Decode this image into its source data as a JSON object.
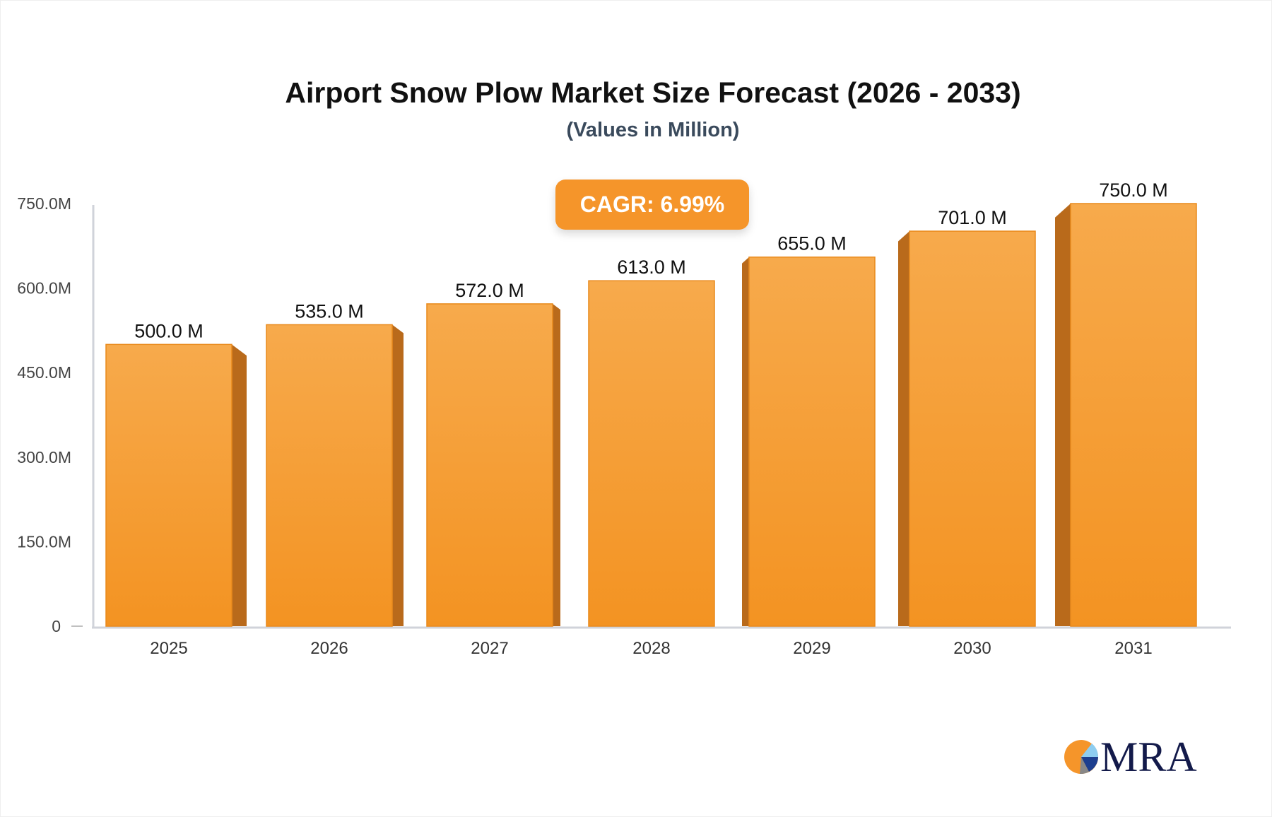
{
  "chart_data": {
    "type": "bar",
    "title": "Airport Snow Plow Market Size Forecast (2026 - 2033)",
    "subtitle": "(Values in Million)",
    "categories": [
      "2025",
      "2026",
      "2027",
      "2028",
      "2029",
      "2030",
      "2031"
    ],
    "values": [
      500.0,
      535.0,
      572.0,
      613.0,
      655.0,
      701.0,
      750.0
    ],
    "data_labels": [
      "500.0 M",
      "535.0 M",
      "572.0 M",
      "613.0 M",
      "655.0 M",
      "701.0 M",
      "750.0 M"
    ],
    "ylim": [
      0,
      750
    ],
    "yticks": [
      0,
      150,
      300,
      450,
      600,
      750
    ],
    "ytick_labels": [
      "0",
      "150.0M",
      "300.0M",
      "450.0M",
      "600.0M",
      "750.0M"
    ],
    "grid": false,
    "annotation": "CAGR: 6.99%",
    "colors": {
      "bar_top": "#f7aa4c",
      "bar_bottom": "#f39322",
      "bar_side": "#b96a1b",
      "axis": "#d0d3da",
      "badge": "#f5952a"
    }
  },
  "logo": {
    "text": "MRA"
  }
}
